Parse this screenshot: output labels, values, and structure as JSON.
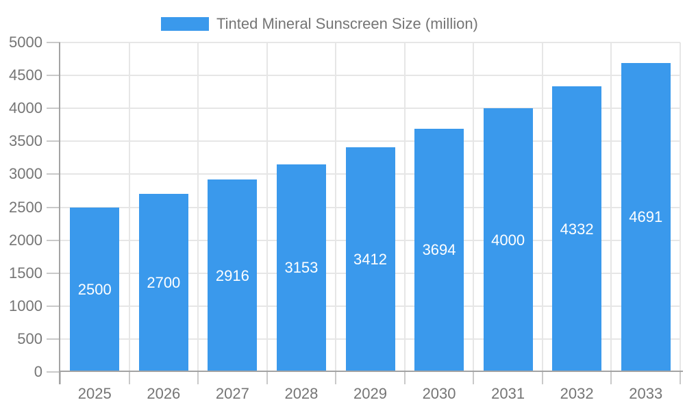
{
  "colors": {
    "bar": "#3a99ec",
    "axis_line": "#a3a3a3",
    "gridline": "#e6e6e6",
    "tick": "#c9c9c9",
    "axis_text": "#757575",
    "value_label_text": "#ffffff",
    "background": "#ffffff"
  },
  "legend": {
    "position": "top",
    "label": "Tinted Mineral Sunscreen Size (million)"
  },
  "chart_data": {
    "type": "bar",
    "title": "Tinted Mineral Sunscreen Size (million)",
    "categories": [
      "2025",
      "2026",
      "2027",
      "2028",
      "2029",
      "2030",
      "2031",
      "2032",
      "2033"
    ],
    "series": [
      {
        "name": "Tinted Mineral Sunscreen Size (million)",
        "values": [
          2500,
          2700,
          2916,
          3153,
          3412,
          3694,
          4000,
          4332,
          4691
        ]
      }
    ],
    "xlabel": "",
    "ylabel": "",
    "ylim": [
      0,
      5000
    ],
    "ytick_step": 500,
    "ytick_labels": [
      "0",
      "500",
      "1000",
      "1500",
      "2000",
      "2500",
      "3000",
      "3500",
      "4000",
      "4500",
      "5000"
    ],
    "grid": true,
    "legend_position": "top",
    "value_label_position": "inside-center"
  }
}
